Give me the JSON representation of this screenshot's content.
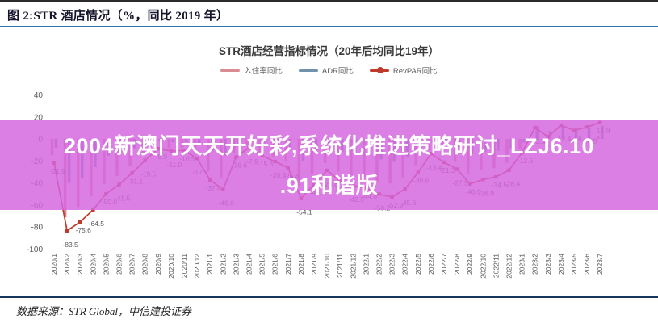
{
  "page": {
    "header_title": "图 2:STR 酒店情况（%，同比 2019 年）",
    "source_note": "数据来源：STR Global，中信建投证券"
  },
  "banner": {
    "line1": "2004新澳门天天开好彩,系统化推进策略研讨_LZJ6.10",
    "line2": ".91和谐版",
    "bg_color": "#d566e0",
    "bg_opacity": 0.84,
    "text_color": "#ffffff"
  },
  "colors": {
    "top_border": "#2b2b2b",
    "title_rule": "#2e74b5",
    "bottom_rule": "#17365d",
    "axis_text": "#595959",
    "data_label_text": "#595959"
  },
  "chart_data": {
    "type": "bar",
    "title": "STR酒店经营指标情况（20年后均同比19年）",
    "legend_position": "top",
    "grid": false,
    "ylim": [
      -100,
      40
    ],
    "yticks": [
      40,
      20,
      0,
      -20,
      -40,
      -60,
      -80,
      -100
    ],
    "categories": [
      "2020/1",
      "2020/2",
      "2020/3",
      "2020/4",
      "2020/5",
      "2020/6",
      "2020/7",
      "2020/8",
      "2020/9",
      "2020/10",
      "2020/11",
      "2020/12",
      "2021/1",
      "2021/2",
      "2021/3",
      "2021/4",
      "2021/5",
      "2021/6",
      "2021/7",
      "2021/8",
      "2021/9",
      "2021/10",
      "2021/11",
      "2021/12",
      "2022/1",
      "2022/2",
      "2022/3",
      "2022/4",
      "2022/5",
      "2022/6",
      "2022/7",
      "2022/8",
      "2022/9",
      "2022/10",
      "2022/11",
      "2022/12",
      "2023/1",
      "2023/2",
      "2023/3",
      "2023/4",
      "2023/5",
      "2023/6",
      "2023/7"
    ],
    "series": [
      {
        "name": "入住率同比",
        "type": "bar",
        "color": "#d98b94",
        "values": [
          -15.0,
          -71.4,
          -61.8,
          -52.3,
          -41.0,
          -33.6,
          -24.8,
          -15.2,
          -6.8,
          -8.2,
          -7.9,
          -13.4,
          -29.5,
          -36.2,
          -12.8,
          -5.6,
          -11.9,
          -16.0,
          -20.6,
          -42.8,
          -32.5,
          -22.1,
          -29.8,
          -33.0,
          -34.6,
          -38.8,
          -40.5,
          -35.2,
          -23.8,
          -10.2,
          -16.4,
          -21.0,
          -31.5,
          -28.4,
          -26.6,
          -21.8,
          -9.6,
          -1.2,
          -4.8,
          0.8,
          -2.2,
          0.4,
          2.6
        ]
      },
      {
        "name": "ADR同比",
        "type": "bar",
        "color": "#6f93ad",
        "values": [
          -8.1,
          -39.9,
          -36.1,
          -25.7,
          -15.3,
          -11.9,
          -8.4,
          -5.1,
          -2.3,
          -3.0,
          -2.8,
          -5.0,
          -11.2,
          -15.3,
          -4.4,
          -2.4,
          -3.9,
          -5.4,
          -7.3,
          -19.8,
          -13.0,
          -8.3,
          -12.0,
          -14.2,
          -15.0,
          -18.6,
          -20.9,
          -16.1,
          -8.9,
          -3.6,
          -5.9,
          -8.2,
          -13.7,
          -11.9,
          -10.8,
          -8.5,
          -3.3,
          11.6,
          7.0,
          11.5,
          10.0,
          10.4,
          12.0
        ]
      },
      {
        "name": "RevPAR同比",
        "type": "line",
        "color": "#c0392b",
        "data_labels": true,
        "values": [
          -21.9,
          -83.5,
          -75.6,
          -64.5,
          -50.0,
          -41.5,
          -31.1,
          -19.5,
          -8.9,
          -11.0,
          -10.5,
          -17.7,
          -37.4,
          -46.0,
          -16.6,
          -7.9,
          -15.3,
          -20.5,
          -26.4,
          -54.1,
          -41.3,
          -28.6,
          -38.2,
          -42.5,
          -44.8,
          -50.2,
          -52.9,
          -45.6,
          -30.6,
          -13.4,
          -21.3,
          -27.5,
          -40.9,
          -36.9,
          -34.5,
          -28.4,
          -12.6,
          10.3,
          1.9,
          12.4,
          7.6,
          10.8,
          14.9
        ]
      }
    ]
  }
}
